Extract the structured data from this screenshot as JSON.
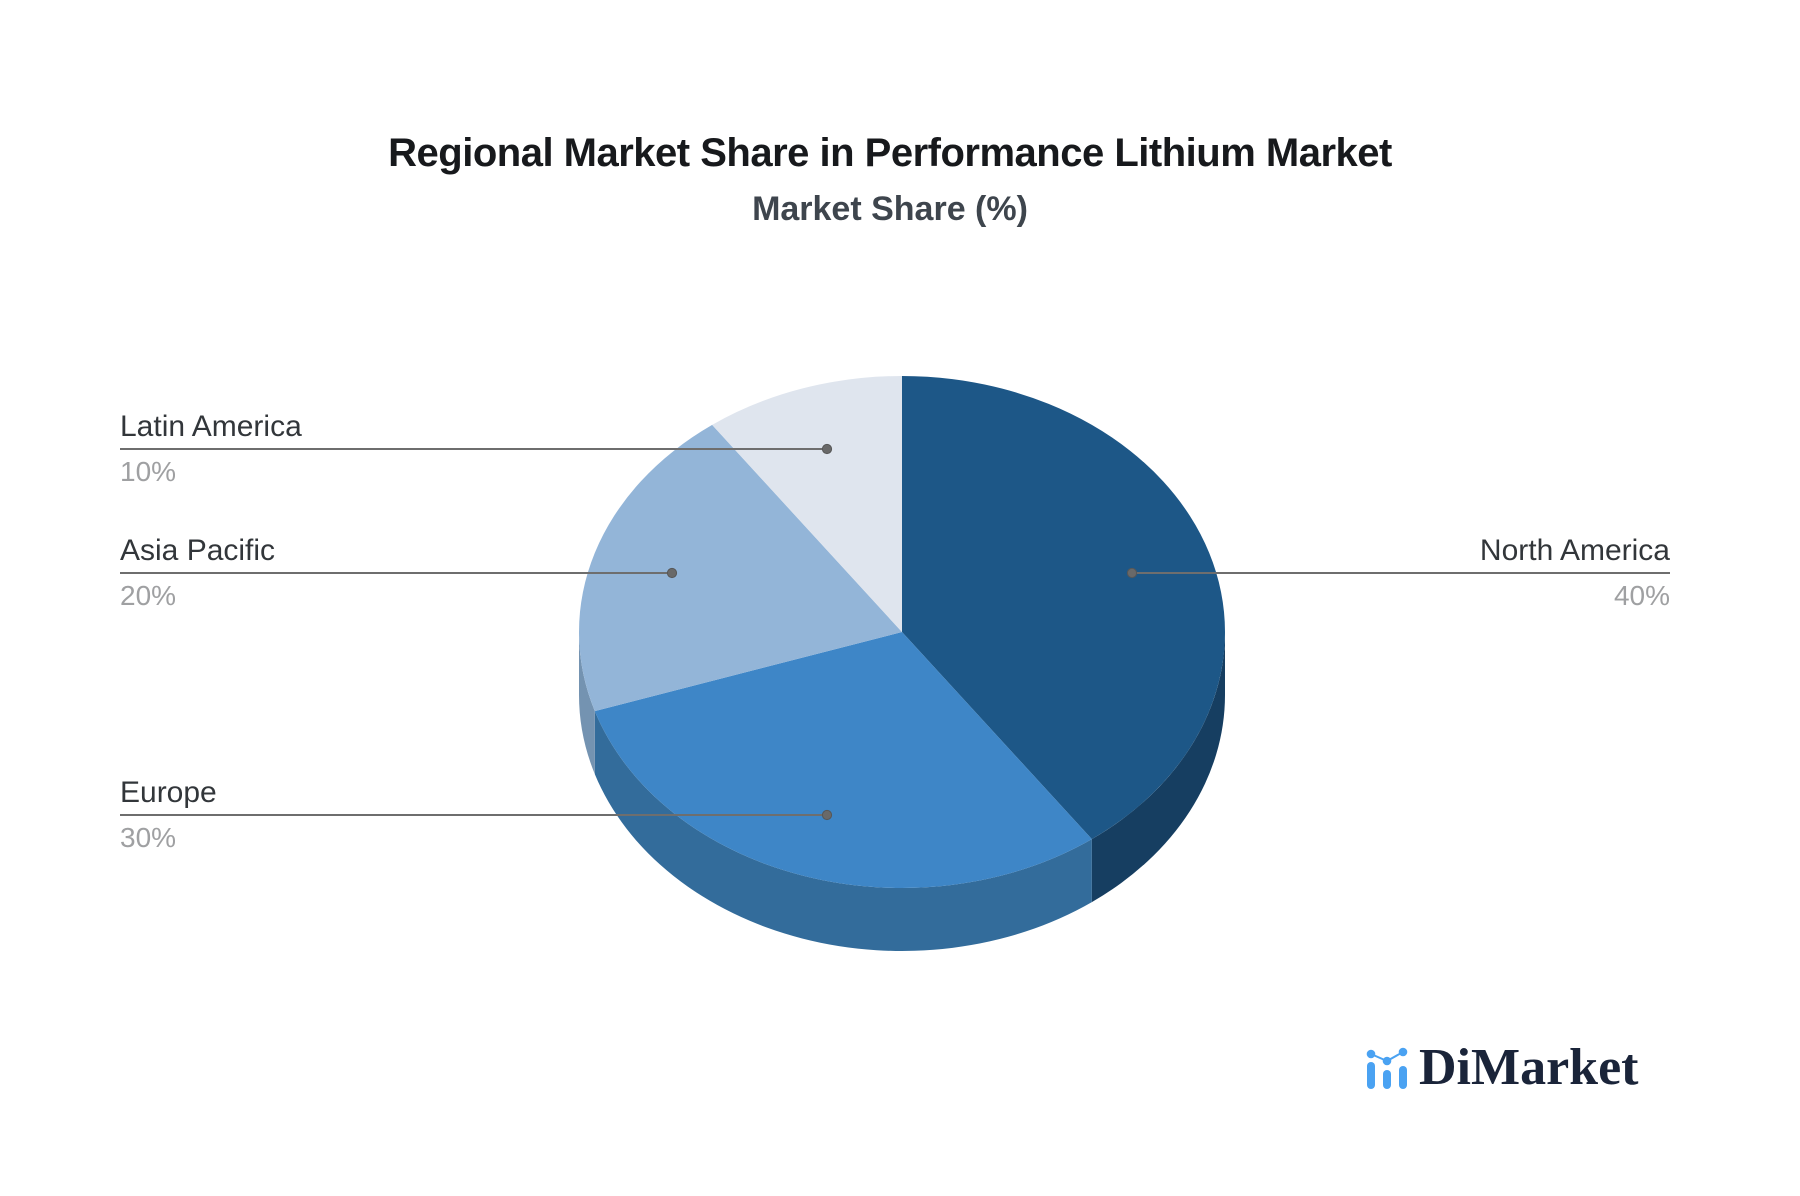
{
  "chart_data": {
    "type": "pie",
    "style": "3d",
    "title": "Regional Market Share in Performance Lithium Market",
    "subtitle": "Market Share (%)",
    "unit": "%",
    "start_angle_deg": 0,
    "direction": "clockwise",
    "legend_position": "leader-line-labels",
    "slices": [
      {
        "label": "North America",
        "value": 40,
        "pct_label": "40%",
        "color": "#1d5787",
        "side_color": "#163e61",
        "label_side": "right"
      },
      {
        "label": "Europe",
        "value": 30,
        "pct_label": "30%",
        "color": "#3e86c7",
        "side_color": "#336c9b",
        "label_side": "left"
      },
      {
        "label": "Asia Pacific",
        "value": 20,
        "pct_label": "20%",
        "color": "#93b5d8",
        "side_color": "#7493b1",
        "label_side": "left"
      },
      {
        "label": "Latin America",
        "value": 10,
        "pct_label": "10%",
        "color": "#dfe5ee",
        "side_color": "#b9c4d4",
        "label_side": "left"
      }
    ],
    "leader_line_color": "#6e6e6e",
    "leader_dot_color": "#696969"
  },
  "branding": {
    "logo_text": "DiMarket",
    "logo_icon": "bar-line-chart-icon",
    "logo_icon_color": "#4aa2f2"
  }
}
